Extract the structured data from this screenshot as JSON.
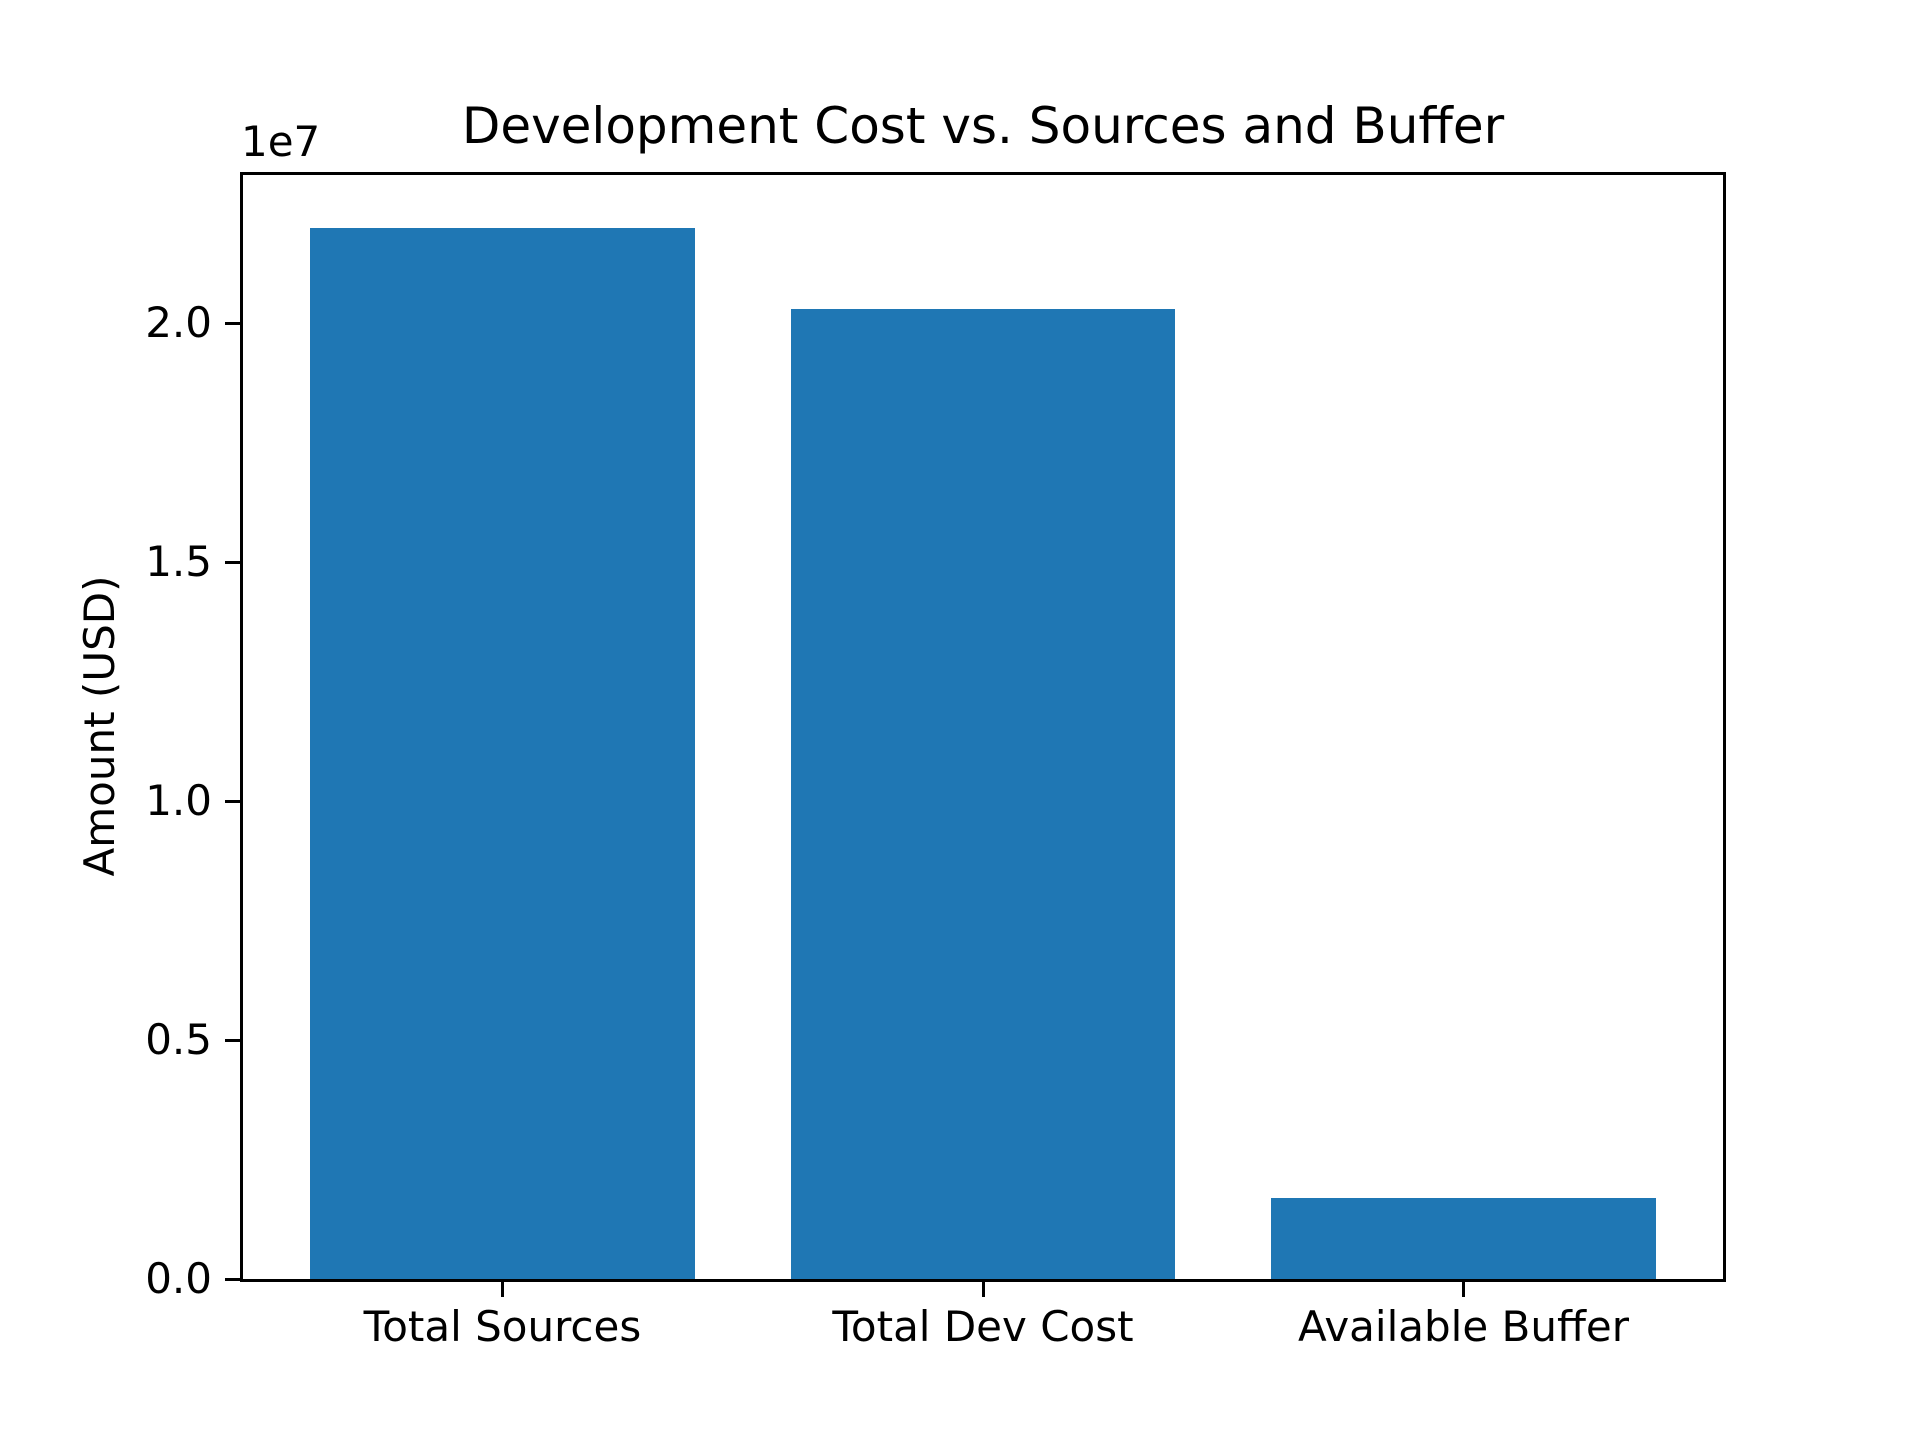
{
  "chart_data": {
    "type": "bar",
    "title": "Development Cost vs. Sources and Buffer",
    "ylabel": "Amount (USD)",
    "xlabel": "",
    "offset_text": "1e7",
    "categories": [
      "Total Sources",
      "Total Dev Cost",
      "Available Buffer"
    ],
    "values": [
      22000000,
      20300000,
      1700000
    ],
    "ytick_values": [
      0,
      5000000,
      10000000,
      15000000,
      20000000
    ],
    "ytick_labels": [
      "0.0",
      "0.5",
      "1.0",
      "1.5",
      "2.0"
    ],
    "ylim": [
      0,
      23100000
    ],
    "xlim": [
      -0.54,
      2.54
    ],
    "bar_width": 0.8,
    "bar_color": "#1f77b4",
    "spine_color": "#000000",
    "text_color": "#000000",
    "background_color": "#ffffff",
    "grid": false,
    "legend": null
  }
}
